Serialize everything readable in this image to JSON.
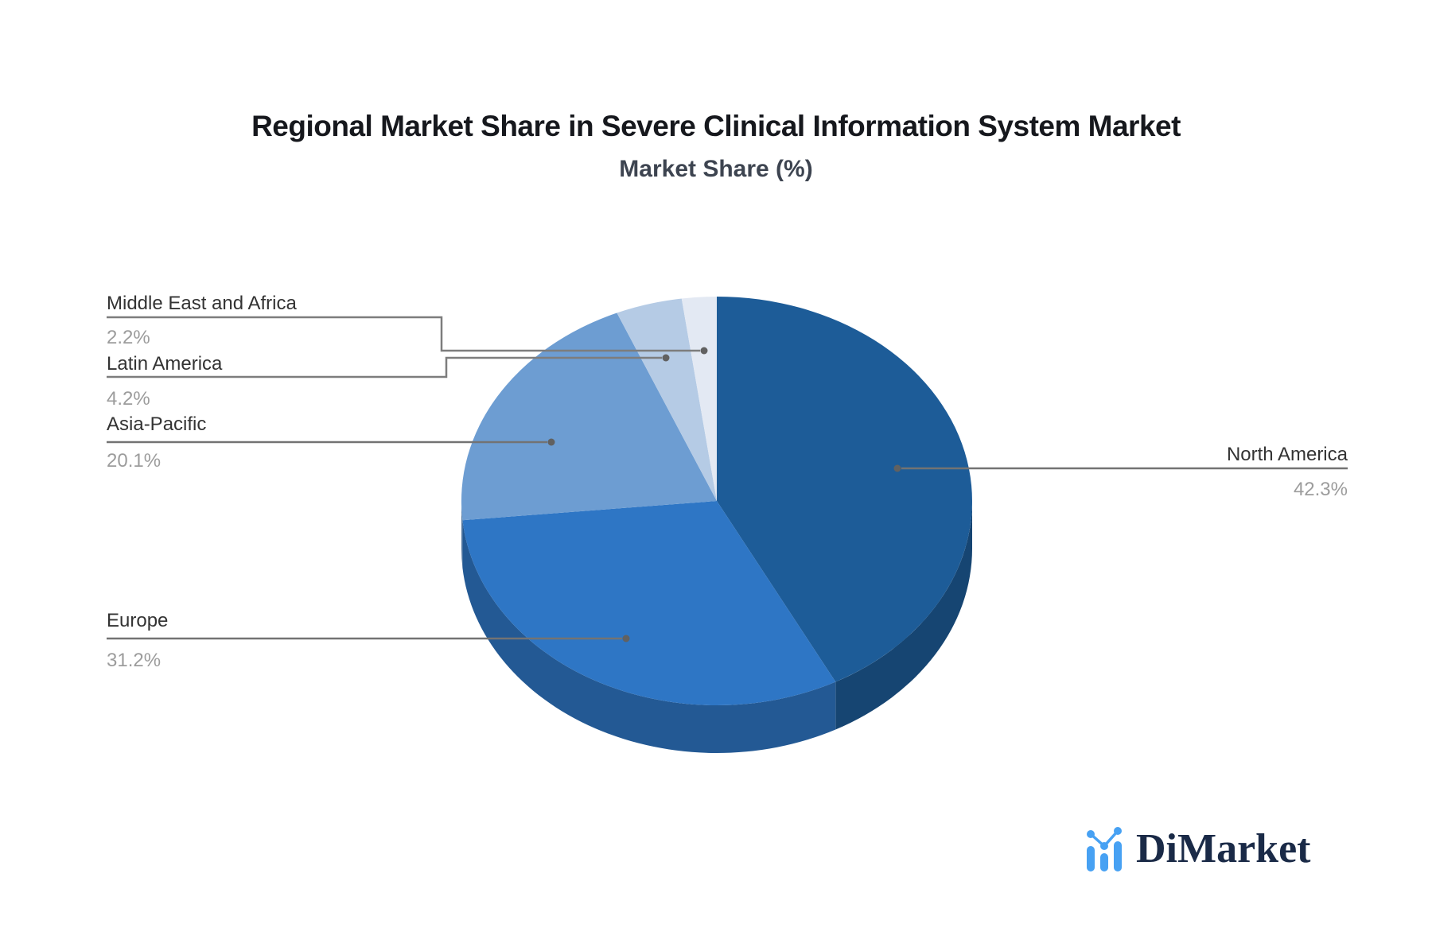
{
  "chart_data": {
    "type": "pie",
    "style": "3d",
    "title": "Regional Market Share in Severe Clinical Information System Market",
    "subtitle": "Market Share (%)",
    "unit": "%",
    "direction": "clockwise",
    "start_angle_deg": 0,
    "legend": "callout-labels",
    "labels": [
      "North America",
      "Europe",
      "Asia-Pacific",
      "Latin America",
      "Middle East and Africa"
    ],
    "values": [
      42.3,
      31.2,
      20.1,
      4.2,
      2.2
    ],
    "display_values": [
      "42.3%",
      "31.2%",
      "20.1%",
      "4.2%",
      "2.2%"
    ],
    "colors": [
      "#1d5c98",
      "#2e76c5",
      "#6d9dd2",
      "#b5cbe5",
      "#e3e9f3"
    ],
    "depth_shade_factor": 0.75
  },
  "branding": {
    "logo_text": "DiMarket",
    "logo_icon": "bar-chart-logo",
    "logo_text_color": "#1a2a47",
    "logo_accent_color": "#47a1f3"
  },
  "style_colors": {
    "leader_line": "#737373",
    "leader_dot": "#616161",
    "label_text": "#333333",
    "value_text": "#9c9c9c"
  }
}
